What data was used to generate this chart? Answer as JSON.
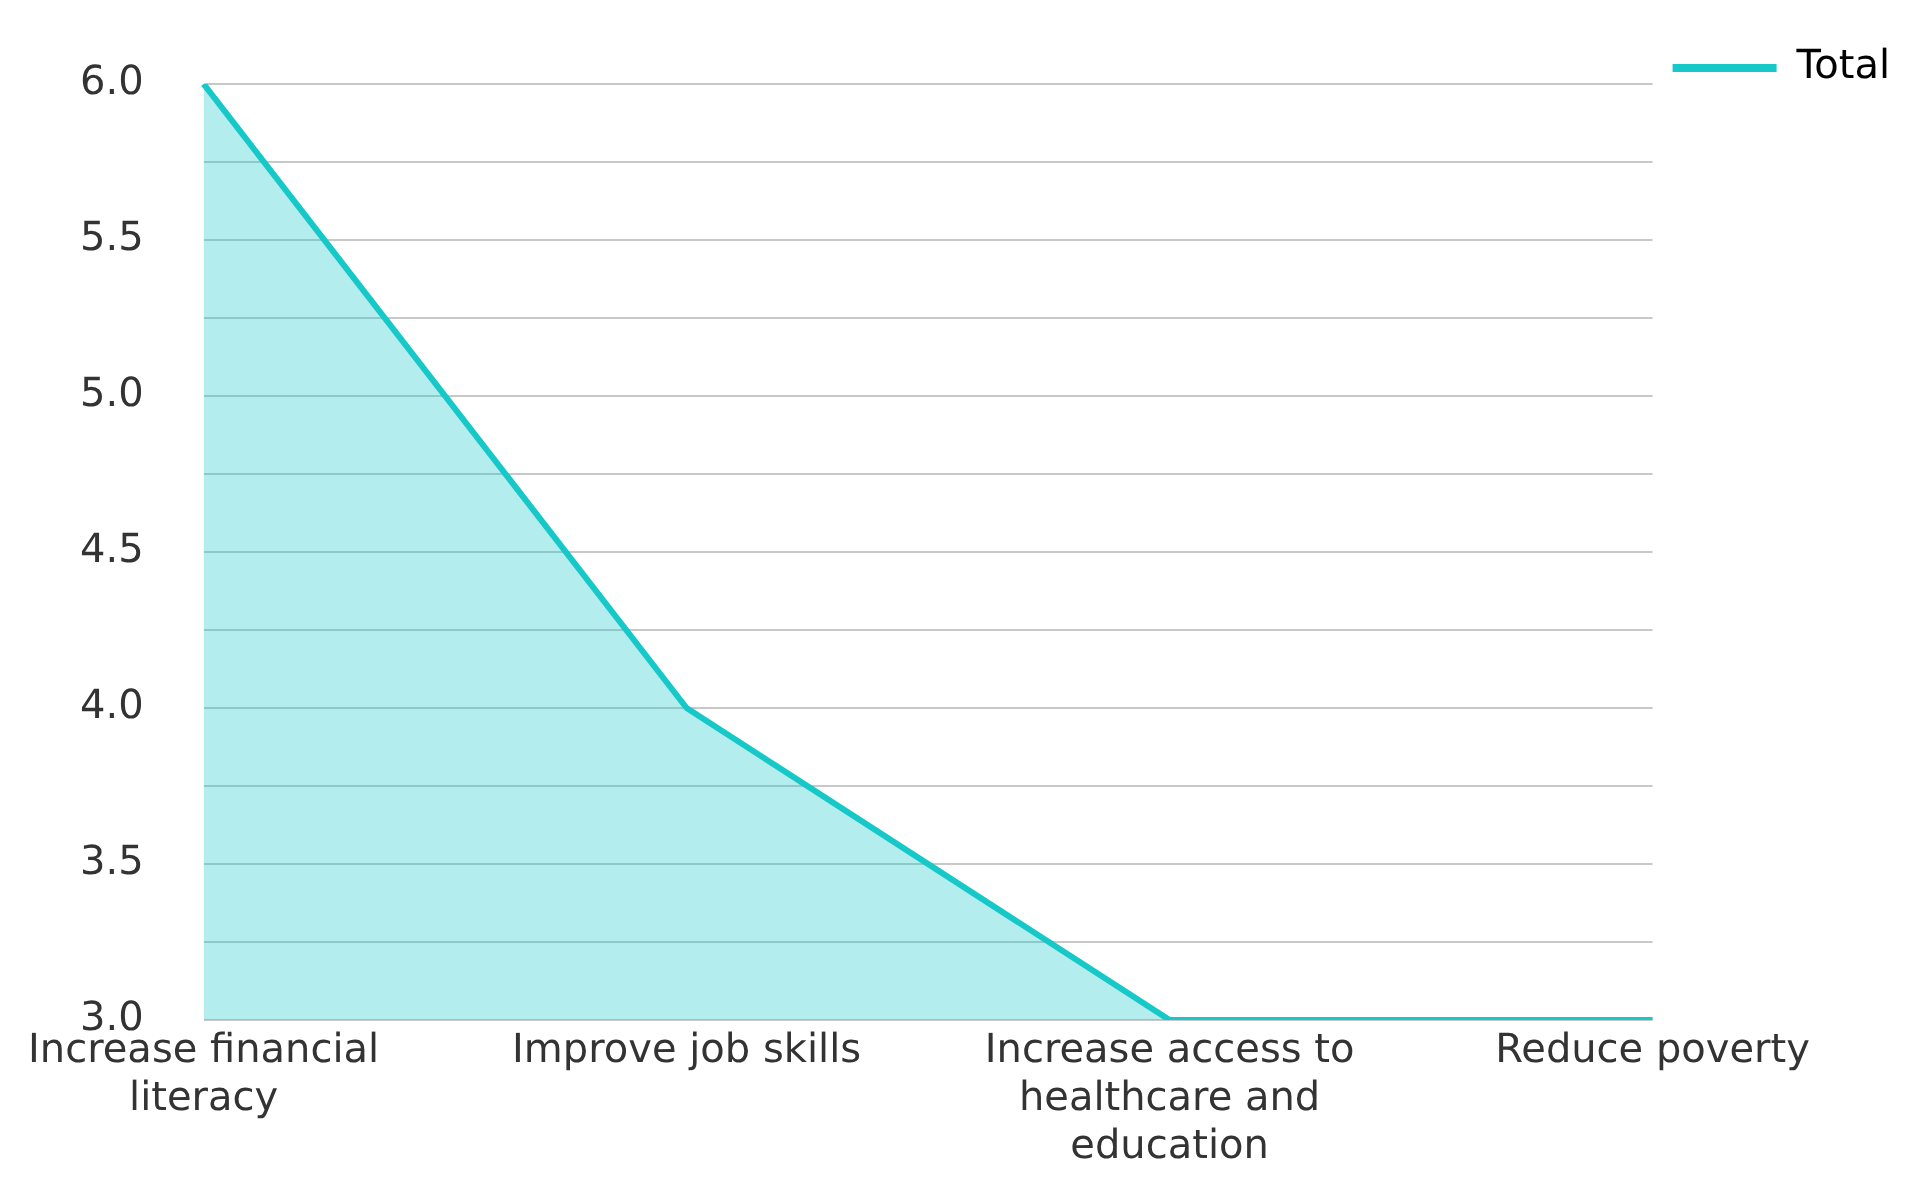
{
  "chart_data": {
    "type": "area",
    "categories": [
      "Increase financial literacy",
      "Improve job skills",
      "Increase access to healthcare and education",
      "Reduce poverty"
    ],
    "series": [
      {
        "name": "Total",
        "color": "#17c8c8",
        "values": [
          6,
          4,
          3,
          3
        ]
      }
    ],
    "ylim": [
      3,
      6
    ],
    "yticks": [
      {
        "value": 3,
        "label": "3.0"
      },
      {
        "value": 3.25,
        "label": null
      },
      3.5,
      {
        "value": 3.75,
        "label": null
      },
      {
        "value": 4,
        "label": "4.0"
      },
      {
        "value": 4.25,
        "label": null
      },
      4.5,
      {
        "value": 4.75,
        "label": null
      },
      {
        "value": 5,
        "label": "5.0"
      },
      {
        "value": 5.25,
        "label": null
      },
      5.5,
      {
        "value": 5.75,
        "label": null
      },
      {
        "value": 6,
        "label": "6.0"
      }
    ],
    "grid": "y",
    "legend": "top right"
  }
}
